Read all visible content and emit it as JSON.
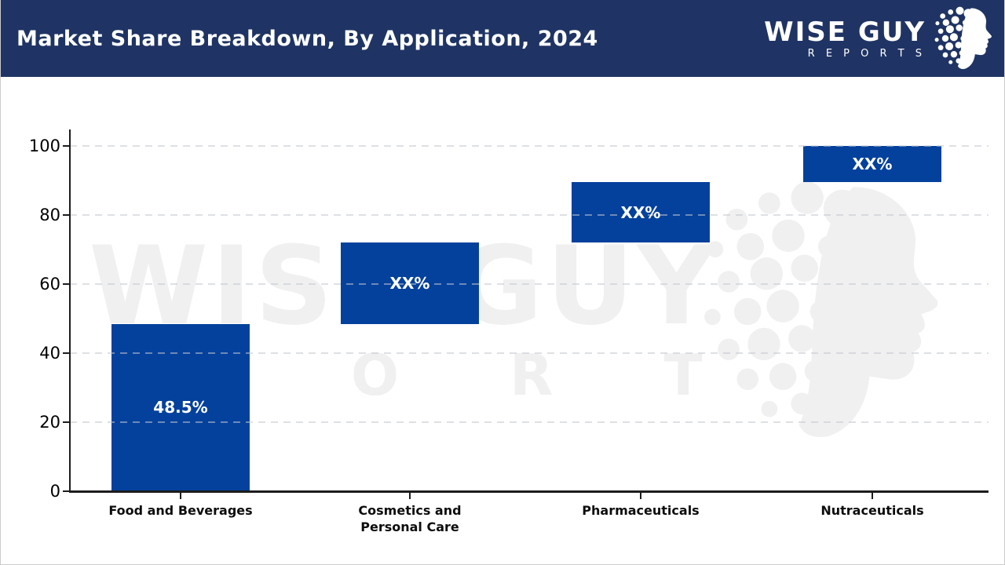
{
  "header": {
    "title": "Market Share Breakdown, By Application, 2024",
    "logo": {
      "name": "WISE GUY",
      "subtitle": "R E P O R T S"
    }
  },
  "watermark": {
    "line1": "WISE GUY",
    "line2": "P O R T S"
  },
  "chart_data": {
    "type": "bar",
    "subtype": "waterfall-breakdown",
    "title": "Market Share Breakdown, By Application, 2024",
    "categories": [
      "Food and Beverages",
      "Cosmetics and Personal Care",
      "Pharmaceuticals",
      "Nutraceuticals"
    ],
    "category_label_lines": [
      [
        "Food and Beverages"
      ],
      [
        "Cosmetics and",
        "Personal Care"
      ],
      [
        "Pharmaceuticals"
      ],
      [
        "Nutraceuticals"
      ]
    ],
    "segments": [
      {
        "category": "Food and Beverages",
        "start": 0,
        "end": 48.5,
        "label": "48.5%"
      },
      {
        "category": "Cosmetics and Personal Care",
        "start": 48.5,
        "end": 72,
        "label": "XX%"
      },
      {
        "category": "Pharmaceuticals",
        "start": 72,
        "end": 89.5,
        "label": "XX%"
      },
      {
        "category": "Nutraceuticals",
        "start": 89.5,
        "end": 100,
        "label": "XX%"
      }
    ],
    "xlabel": "",
    "ylabel": "",
    "ylim": [
      0,
      105
    ],
    "yticks": [
      0,
      20,
      40,
      60,
      80,
      100
    ],
    "grid": "horizontal dashed, drawn over bars",
    "legend": "none",
    "bar_color": "#04419d",
    "bar_value_label_color": "#ffffff"
  },
  "colors": {
    "header_bg": "#1f3464",
    "bar": "#04419d",
    "axis": "#1c1c1c",
    "tick_text": "#000000",
    "category_text": "#0d0d0d",
    "watermark": "#f0f0f0",
    "frame_border": "#cccccc"
  }
}
